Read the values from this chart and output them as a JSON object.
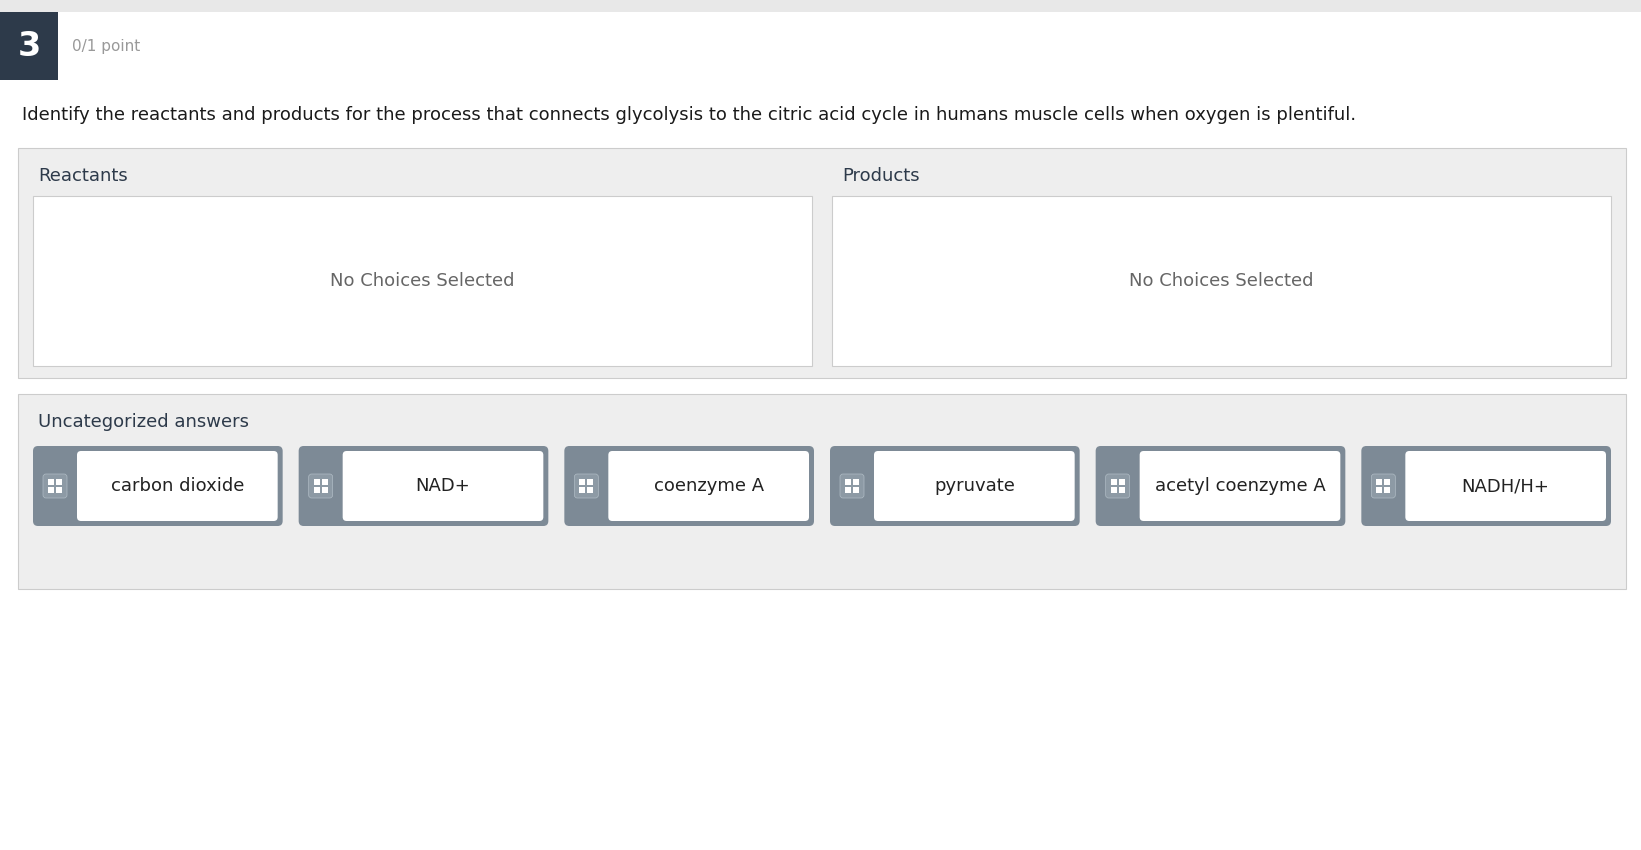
{
  "question_number": "3",
  "points": "0/1 point",
  "question_text": "Identify the reactants and products for the process that connects glycolysis to the citric acid cycle in humans muscle cells when oxygen is plentiful.",
  "reactants_label": "Reactants",
  "products_label": "Products",
  "no_choices_text": "No Choices Selected",
  "uncategorized_label": "Uncategorized answers",
  "answer_items": [
    "carbon dioxide",
    "NAD+",
    "coenzyme A",
    "pyruvate",
    "acetyl coenzyme A",
    "NADH/H+"
  ],
  "bg_color": "#f9f9f9",
  "page_bg": "#ffffff",
  "header_bg": "#2d3a4a",
  "header_text_color": "#ffffff",
  "points_color": "#999999",
  "section_bg": "#eeeeee",
  "inner_box_bg": "#ffffff",
  "inner_box_border": "#cccccc",
  "item_outer_bg": "#7d8a96",
  "item_inner_bg": "#ffffff",
  "item_icon_bg": "#6b7a87",
  "no_choices_color": "#666666",
  "label_color": "#2d3a4a",
  "question_color": "#1a1a1a",
  "card_border_color": "#aaaaaa",
  "section_border_color": "#cccccc"
}
